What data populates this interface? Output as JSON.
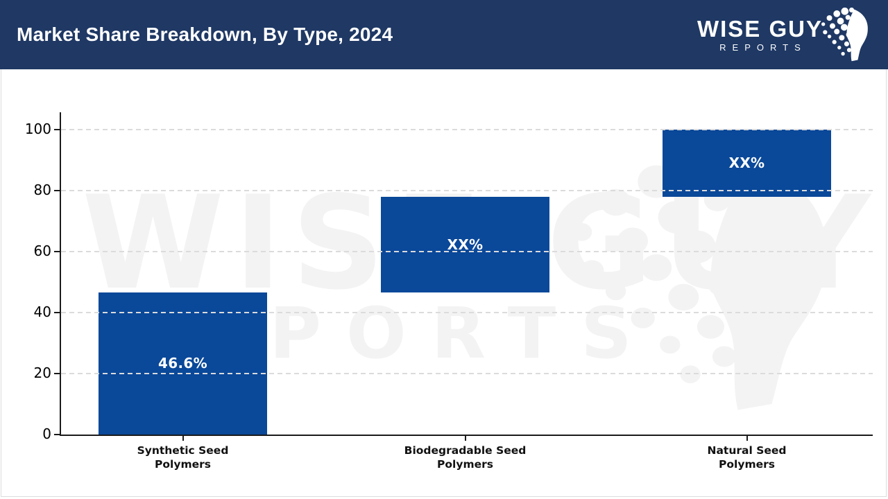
{
  "header": {
    "title": "Market Share Breakdown, By Type, 2024",
    "brand_line1": "WISE GUY",
    "brand_line2": "REPORTS"
  },
  "watermark": {
    "line1": "WISE GUY",
    "line2": "REPORTS"
  },
  "colors": {
    "header_bg": "#1F3864",
    "bar": "#0A4899",
    "grid": "#DBDBDB",
    "watermark": "#F3F3F3",
    "axis_text": "#000000",
    "bar_label_text": "#FFFFFF"
  },
  "chart_data": {
    "type": "bar",
    "subtype": "floating-segment-breakdown",
    "title": "Market Share Breakdown, By Type, 2024",
    "categories": [
      "Synthetic Seed\nPolymers",
      "Biodegradable Seed\nPolymers",
      "Natural Seed\nPolymers"
    ],
    "segments": [
      {
        "category": "Synthetic Seed Polymers",
        "start": 0,
        "end": 46.6,
        "label": "46.6%"
      },
      {
        "category": "Biodegradable Seed Polymers",
        "start": 46.6,
        "end": 78,
        "label": "XX%"
      },
      {
        "category": "Natural Seed Polymers",
        "start": 78,
        "end": 100,
        "label": "XX%"
      }
    ],
    "xlabel": "",
    "ylabel": "",
    "ylim": [
      0,
      100
    ],
    "yticks": [
      0,
      20,
      40,
      60,
      80,
      100
    ],
    "grid": "horizontal-dashed",
    "legend": "none",
    "bar_color": "#0A4899"
  }
}
